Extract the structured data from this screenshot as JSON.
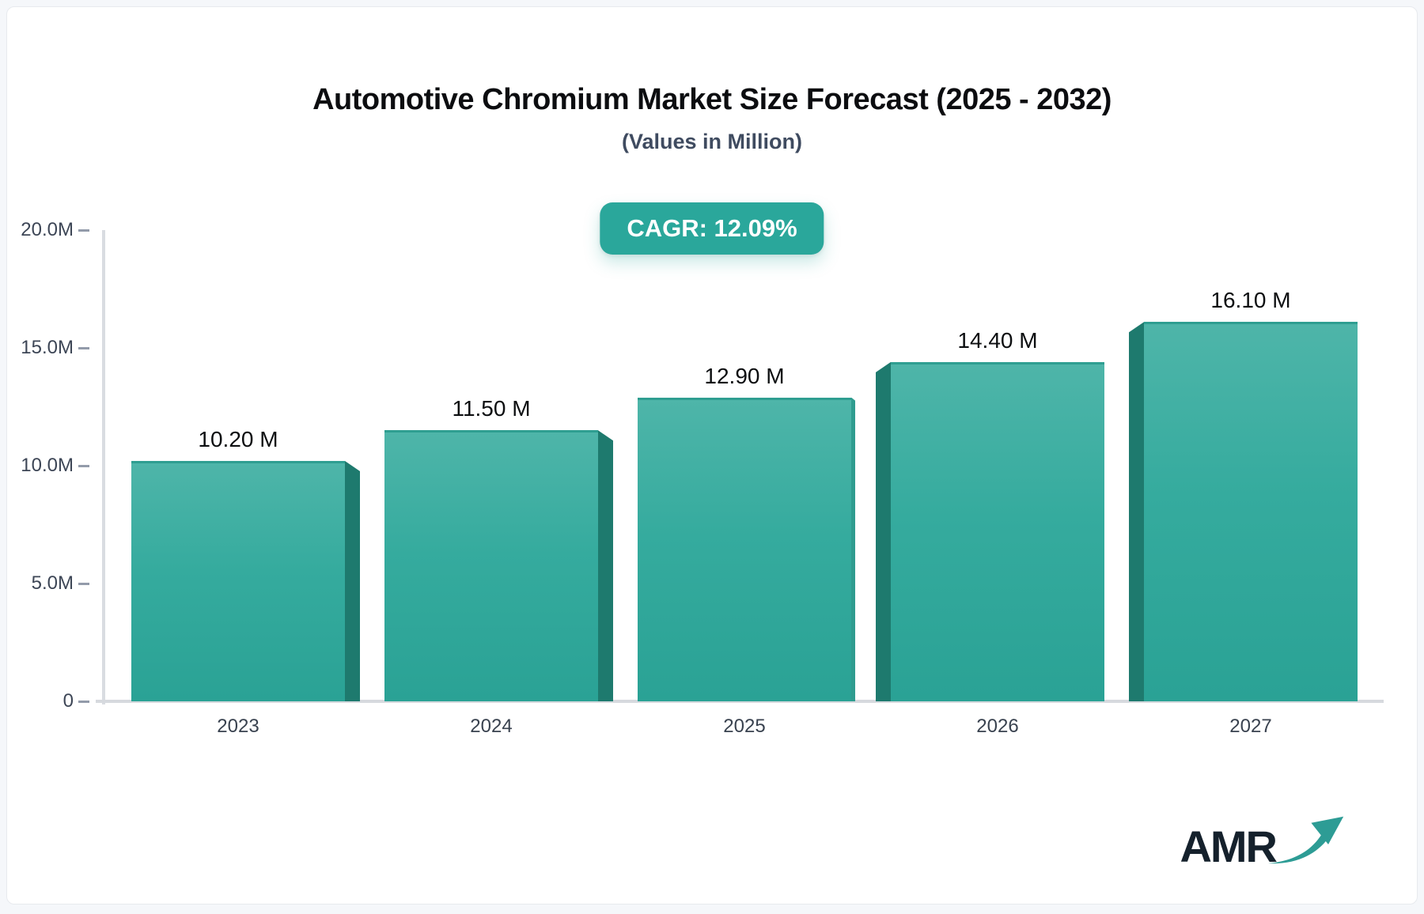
{
  "page": {
    "background_color": "#f5f7fa",
    "card_background": "#ffffff"
  },
  "header": {
    "title": "Automotive Chromium Market Size Forecast (2025 - 2032)",
    "subtitle": "(Values in Million)",
    "cagr_badge_label": "CAGR: 12.09%",
    "cagr_badge_color": "#2aa79b"
  },
  "chart_data": {
    "type": "bar",
    "categories": [
      "2023",
      "2024",
      "2025",
      "2026",
      "2027"
    ],
    "values": [
      10.2,
      11.5,
      12.9,
      14.4,
      16.1
    ],
    "value_labels": [
      "10.20 M",
      "11.50 M",
      "12.90 M",
      "14.40 M",
      "16.10 M"
    ],
    "title": "Automotive Chromium Market Size Forecast (2025 - 2032)",
    "subtitle": "(Values in Million)",
    "xlabel": "",
    "ylabel": "",
    "ylim": [
      0,
      20
    ],
    "y_ticks": [
      {
        "value": 20,
        "label": "20.0M"
      },
      {
        "value": 15,
        "label": "15.0M"
      },
      {
        "value": 10,
        "label": "10.0M"
      },
      {
        "value": 5,
        "label": "5.0M"
      },
      {
        "value": 0,
        "label": "0"
      }
    ],
    "grid": false,
    "legend": false,
    "bar_color_top": "#4eb5a9",
    "bar_color_bottom": "#2aa295",
    "bar_side_color_dark": "#1e7a6e",
    "bar_side_color_medium": "#2f9c8f",
    "axis_color": "#d9dce1",
    "layout_hints": {
      "bar_3d_sides": [
        "right",
        "right",
        "right-thin",
        "left",
        "left"
      ]
    }
  },
  "logo": {
    "text": "AMR",
    "text_color": "#15212c",
    "arrow_color": "#2d9c95",
    "arrow_icon": "trending-up-arrow"
  }
}
